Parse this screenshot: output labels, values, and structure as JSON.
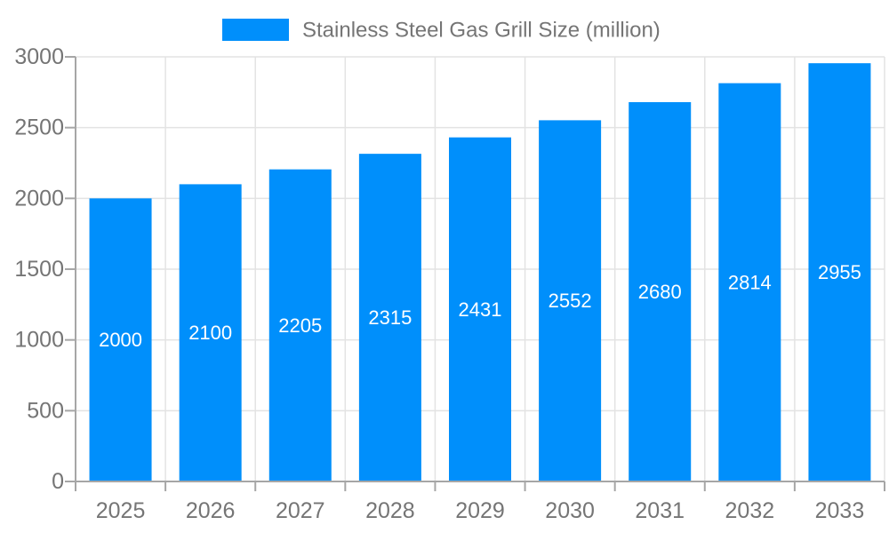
{
  "chart_data": {
    "type": "bar",
    "title": "Stainless Steel Gas Grill Size (million)",
    "categories": [
      "2025",
      "2026",
      "2027",
      "2028",
      "2029",
      "2030",
      "2031",
      "2032",
      "2033"
    ],
    "series": [
      {
        "name": "Stainless Steel Gas Grill Size (million)",
        "values": [
          2000,
          2100,
          2205,
          2315,
          2431,
          2552,
          2680,
          2814,
          2955
        ]
      }
    ],
    "xlabel": "",
    "ylabel": "",
    "ylim": [
      0,
      3000
    ],
    "yticks": [
      0,
      500,
      1000,
      1500,
      2000,
      2500,
      3000
    ],
    "grid": true,
    "legend_position": "top-center",
    "bar_labels_inside": true
  },
  "legend": {
    "label": "Stainless Steel Gas Grill Size (million)"
  },
  "colors": {
    "bar": "#008FFB",
    "bar_label": "#ffffff",
    "axis_line": "#a6a6a6",
    "tick_line": "#a6a6a6",
    "grid_line": "#e3e3e3",
    "axis_text": "#757575",
    "legend_text": "#757575",
    "background": "#ffffff"
  }
}
